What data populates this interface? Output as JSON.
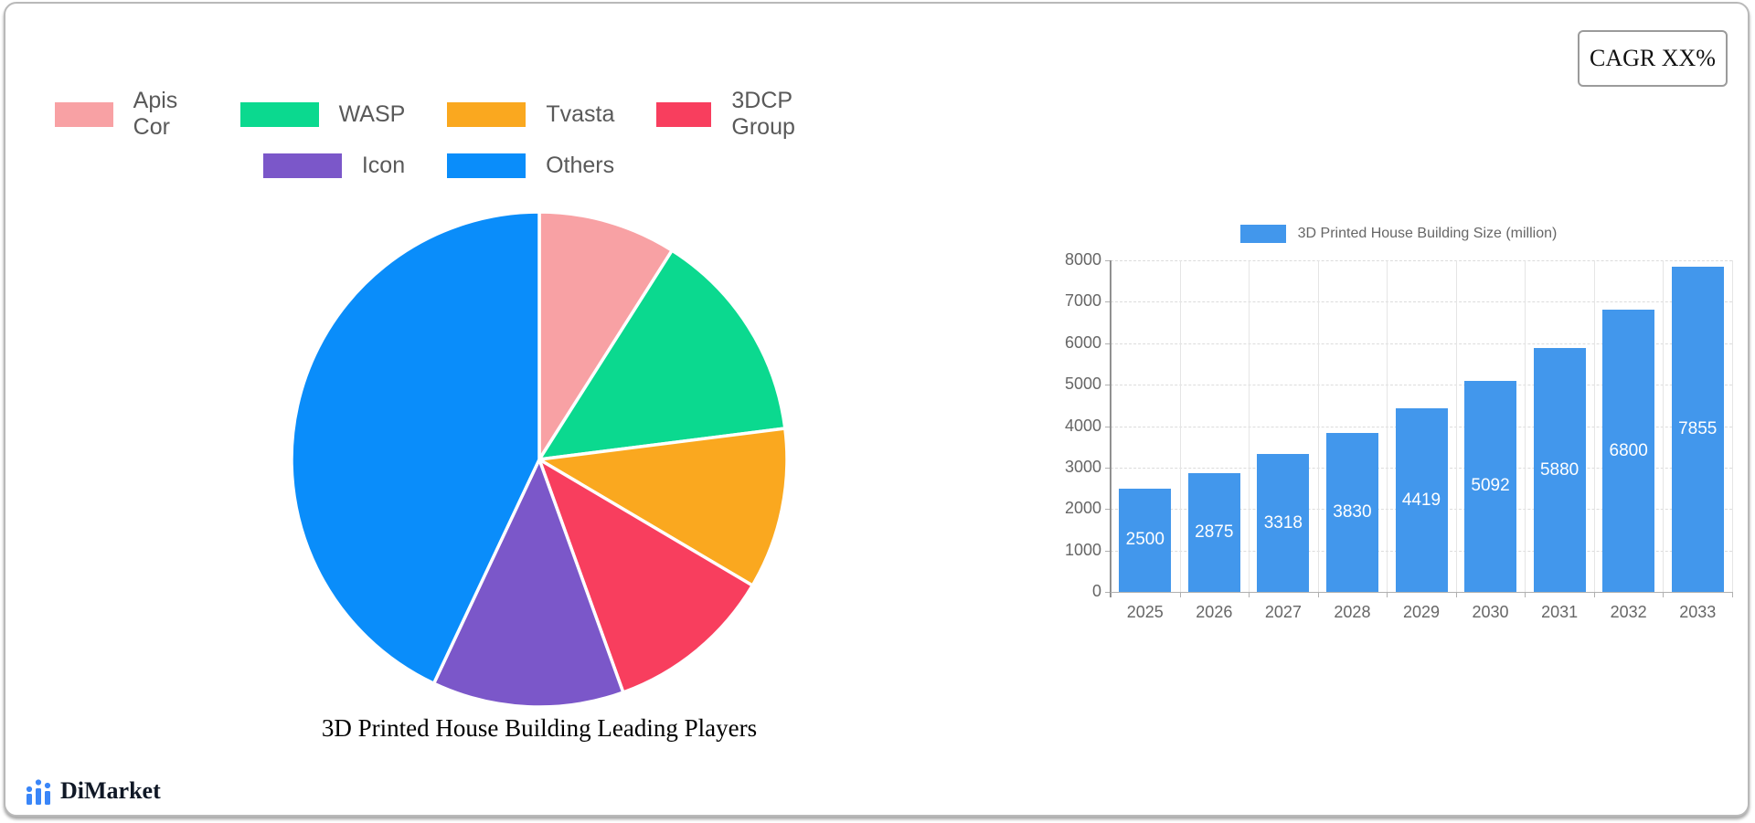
{
  "cagr_label": "CAGR XX%",
  "brand": "DiMarket",
  "colors": {
    "pie_border": "#ffffff",
    "bar_fill": "#4297EC",
    "legend_text": "#595959",
    "axis_text": "#666666",
    "brand_icon_blue": "#3A86F8"
  },
  "chart_data": [
    {
      "type": "pie",
      "title": "3D Printed House Building Leading Players",
      "legend_position": "top",
      "legend_row_split": 4,
      "series": [
        {
          "name": "Apis Cor",
          "value": 9,
          "color": "#F8A1A4"
        },
        {
          "name": "WASP",
          "value": 14,
          "color": "#0BD98F"
        },
        {
          "name": "Tvasta",
          "value": 10.5,
          "color": "#FAA81F"
        },
        {
          "name": "3DCP Group",
          "value": 11,
          "color": "#F83E5E"
        },
        {
          "name": "Icon",
          "value": 12.5,
          "color": "#7B57C9"
        },
        {
          "name": "Others",
          "value": 43,
          "color": "#0A8DFA"
        }
      ],
      "value_unit": "percent of pie (estimated from slice angles)",
      "start_angle_deg": 0,
      "direction": "clockwise-from-top"
    },
    {
      "type": "bar",
      "legend": "3D Printed House Building Size (million)",
      "categories": [
        "2025",
        "2026",
        "2027",
        "2028",
        "2029",
        "2030",
        "2031",
        "2032",
        "2033"
      ],
      "values": [
        2500,
        2875,
        3318,
        3830,
        4419,
        5092,
        5880,
        6800,
        7855
      ],
      "bar_color": "#4297EC",
      "ylim": [
        0,
        8000
      ],
      "yticks": [
        0,
        1000,
        2000,
        3000,
        4000,
        5000,
        6000,
        7000,
        8000
      ],
      "grid": true,
      "legend_position": "top",
      "value_labels": "white, centered inside bars"
    }
  ]
}
